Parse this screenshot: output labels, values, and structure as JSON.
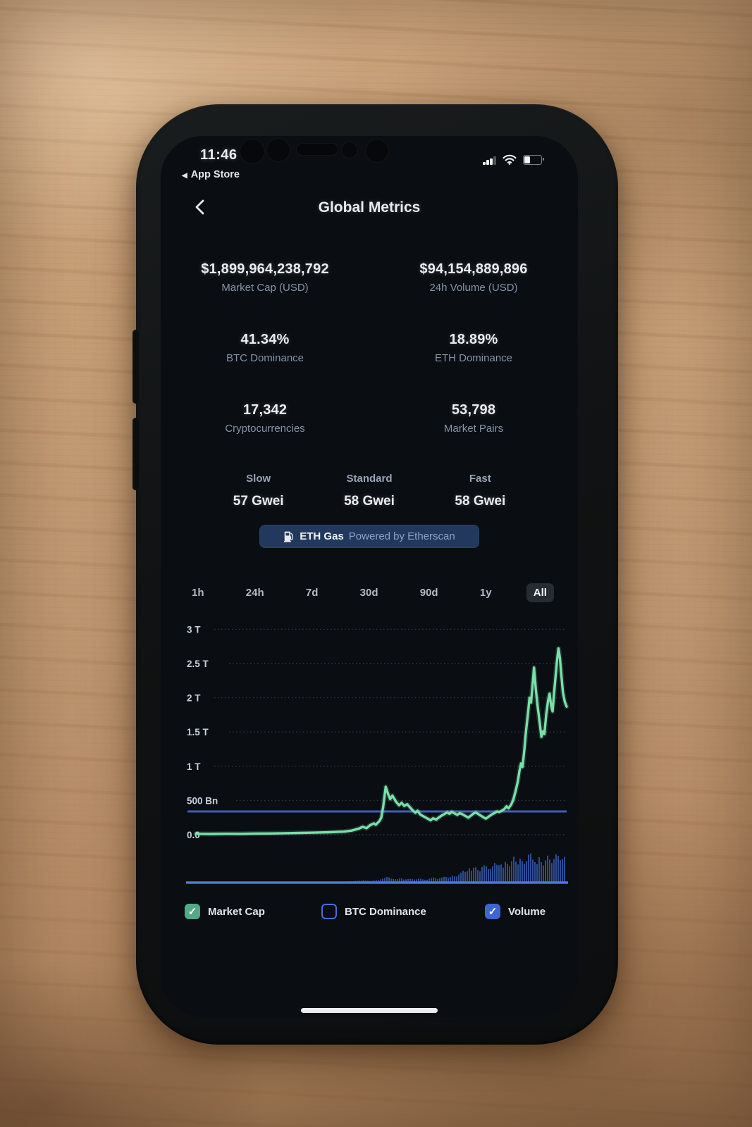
{
  "status_bar": {
    "time": "11:46",
    "back_app": "App Store"
  },
  "header": {
    "title": "Global Metrics"
  },
  "stats": [
    {
      "value": "$1,899,964,238,792",
      "label": "Market Cap (USD)"
    },
    {
      "value": "$94,154,889,896",
      "label": "24h Volume (USD)"
    },
    {
      "value": "41.34%",
      "label": "BTC Dominance"
    },
    {
      "value": "18.89%",
      "label": "ETH Dominance"
    },
    {
      "value": "17,342",
      "label": "Cryptocurrencies"
    },
    {
      "value": "53,798",
      "label": "Market Pairs"
    }
  ],
  "gas": {
    "tiers": [
      {
        "label": "Slow",
        "value": "57 Gwei"
      },
      {
        "label": "Standard",
        "value": "58 Gwei"
      },
      {
        "label": "Fast",
        "value": "58 Gwei"
      }
    ],
    "badge": {
      "title": "ETH Gas",
      "subtitle": "Powered by Etherscan"
    }
  },
  "range_tabs": {
    "options": [
      "1h",
      "24h",
      "7d",
      "30d",
      "90d",
      "1y",
      "All"
    ],
    "active": "All"
  },
  "chart_data": {
    "type": "line",
    "selected_range": "All",
    "y_axis_unit": "USD",
    "y_ticks": [
      {
        "label": "3 T",
        "value_bn": 3000
      },
      {
        "label": "2.5 T",
        "value_bn": 2500
      },
      {
        "label": "2 T",
        "value_bn": 2000
      },
      {
        "label": "1.5 T",
        "value_bn": 1500
      },
      {
        "label": "1 T",
        "value_bn": 1000
      },
      {
        "label": "500 Bn",
        "value_bn": 500
      },
      {
        "label": "0.0",
        "value_bn": 0
      }
    ],
    "ylim_bn": [
      0,
      3200
    ],
    "grid": true,
    "legend_position": "bottom",
    "series": [
      {
        "name": "Market Cap",
        "type": "line",
        "color": "#7adfa9",
        "points": [
          [
            0,
            12
          ],
          [
            0.04,
            10
          ],
          [
            0.08,
            13
          ],
          [
            0.12,
            12
          ],
          [
            0.16,
            16
          ],
          [
            0.2,
            18
          ],
          [
            0.24,
            22
          ],
          [
            0.28,
            26
          ],
          [
            0.32,
            30
          ],
          [
            0.36,
            36
          ],
          [
            0.4,
            45
          ],
          [
            0.42,
            60
          ],
          [
            0.44,
            90
          ],
          [
            0.45,
            115
          ],
          [
            0.46,
            95
          ],
          [
            0.47,
            140
          ],
          [
            0.48,
            165
          ],
          [
            0.485,
            145
          ],
          [
            0.495,
            200
          ],
          [
            0.5,
            250
          ],
          [
            0.505,
            400
          ],
          [
            0.512,
            700
          ],
          [
            0.518,
            600
          ],
          [
            0.524,
            520
          ],
          [
            0.53,
            570
          ],
          [
            0.54,
            480
          ],
          [
            0.548,
            430
          ],
          [
            0.555,
            465
          ],
          [
            0.562,
            420
          ],
          [
            0.57,
            445
          ],
          [
            0.578,
            395
          ],
          [
            0.586,
            350
          ],
          [
            0.592,
            320
          ],
          [
            0.598,
            350
          ],
          [
            0.605,
            295
          ],
          [
            0.615,
            265
          ],
          [
            0.625,
            235
          ],
          [
            0.633,
            210
          ],
          [
            0.64,
            240
          ],
          [
            0.648,
            220
          ],
          [
            0.655,
            250
          ],
          [
            0.663,
            280
          ],
          [
            0.67,
            300
          ],
          [
            0.678,
            325
          ],
          [
            0.684,
            305
          ],
          [
            0.69,
            335
          ],
          [
            0.698,
            310
          ],
          [
            0.705,
            290
          ],
          [
            0.712,
            315
          ],
          [
            0.72,
            295
          ],
          [
            0.728,
            270
          ],
          [
            0.735,
            250
          ],
          [
            0.742,
            280
          ],
          [
            0.748,
            305
          ],
          [
            0.755,
            325
          ],
          [
            0.762,
            300
          ],
          [
            0.768,
            280
          ],
          [
            0.775,
            255
          ],
          [
            0.782,
            235
          ],
          [
            0.79,
            265
          ],
          [
            0.798,
            295
          ],
          [
            0.805,
            315
          ],
          [
            0.812,
            340
          ],
          [
            0.818,
            330
          ],
          [
            0.825,
            350
          ],
          [
            0.832,
            375
          ],
          [
            0.838,
            415
          ],
          [
            0.843,
            385
          ],
          [
            0.85,
            435
          ],
          [
            0.856,
            510
          ],
          [
            0.862,
            630
          ],
          [
            0.868,
            770
          ],
          [
            0.873,
            940
          ],
          [
            0.877,
            1040
          ],
          [
            0.881,
            990
          ],
          [
            0.886,
            1240
          ],
          [
            0.89,
            1490
          ],
          [
            0.895,
            1740
          ],
          [
            0.9,
            2000
          ],
          [
            0.904,
            1930
          ],
          [
            0.908,
            2180
          ],
          [
            0.912,
            2440
          ],
          [
            0.917,
            2120
          ],
          [
            0.922,
            1860
          ],
          [
            0.927,
            1650
          ],
          [
            0.932,
            1430
          ],
          [
            0.936,
            1510
          ],
          [
            0.94,
            1470
          ],
          [
            0.945,
            1760
          ],
          [
            0.95,
            1960
          ],
          [
            0.954,
            2060
          ],
          [
            0.958,
            1890
          ],
          [
            0.962,
            1800
          ],
          [
            0.966,
            2060
          ],
          [
            0.97,
            2300
          ],
          [
            0.974,
            2540
          ],
          [
            0.978,
            2720
          ],
          [
            0.982,
            2580
          ],
          [
            0.986,
            2320
          ],
          [
            0.99,
            2080
          ],
          [
            0.995,
            1940
          ],
          [
            1,
            1870
          ]
        ]
      },
      {
        "name": "BTC Dominance",
        "type": "flat-overlay-line",
        "color": "#4468c9",
        "flat_value_bn": 340
      },
      {
        "name": "Volume",
        "type": "bar",
        "panel": "bottom",
        "color": "#31519c",
        "baseline_color": "#4f76d6",
        "points": [
          [
            0,
            0.01
          ],
          [
            0.1,
            0.012
          ],
          [
            0.2,
            0.015
          ],
          [
            0.3,
            0.02
          ],
          [
            0.38,
            0.025
          ],
          [
            0.42,
            0.04
          ],
          [
            0.45,
            0.07
          ],
          [
            0.47,
            0.05
          ],
          [
            0.49,
            0.08
          ],
          [
            0.505,
            0.13
          ],
          [
            0.515,
            0.18
          ],
          [
            0.525,
            0.12
          ],
          [
            0.54,
            0.1
          ],
          [
            0.55,
            0.14
          ],
          [
            0.56,
            0.09
          ],
          [
            0.575,
            0.12
          ],
          [
            0.59,
            0.09
          ],
          [
            0.6,
            0.13
          ],
          [
            0.61,
            0.1
          ],
          [
            0.62,
            0.08
          ],
          [
            0.63,
            0.13
          ],
          [
            0.64,
            0.16
          ],
          [
            0.65,
            0.11
          ],
          [
            0.66,
            0.15
          ],
          [
            0.67,
            0.19
          ],
          [
            0.68,
            0.14
          ],
          [
            0.69,
            0.21
          ],
          [
            0.7,
            0.17
          ],
          [
            0.71,
            0.28
          ],
          [
            0.72,
            0.38
          ],
          [
            0.727,
            0.3
          ],
          [
            0.735,
            0.45
          ],
          [
            0.742,
            0.36
          ],
          [
            0.75,
            0.52
          ],
          [
            0.757,
            0.4
          ],
          [
            0.764,
            0.34
          ],
          [
            0.77,
            0.48
          ],
          [
            0.778,
            0.56
          ],
          [
            0.785,
            0.44
          ],
          [
            0.79,
            0.38
          ],
          [
            0.8,
            0.52
          ],
          [
            0.806,
            0.64
          ],
          [
            0.812,
            0.5
          ],
          [
            0.82,
            0.58
          ],
          [
            0.827,
            0.46
          ],
          [
            0.834,
            0.68
          ],
          [
            0.84,
            0.54
          ],
          [
            0.847,
            0.48
          ],
          [
            0.853,
            0.88
          ],
          [
            0.86,
            0.66
          ],
          [
            0.867,
            0.56
          ],
          [
            0.874,
            0.78
          ],
          [
            0.88,
            0.62
          ],
          [
            0.887,
            0.54
          ],
          [
            0.893,
            0.82
          ],
          [
            0.9,
            0.94
          ],
          [
            0.906,
            0.72
          ],
          [
            0.912,
            0.64
          ],
          [
            0.918,
            0.56
          ],
          [
            0.924,
            0.78
          ],
          [
            0.93,
            0.62
          ],
          [
            0.936,
            0.52
          ],
          [
            0.942,
            0.72
          ],
          [
            0.948,
            0.86
          ],
          [
            0.954,
            0.66
          ],
          [
            0.96,
            0.58
          ],
          [
            0.966,
            0.8
          ],
          [
            0.972,
            0.92
          ],
          [
            0.978,
            0.74
          ],
          [
            0.984,
            0.64
          ],
          [
            0.99,
            0.82
          ],
          [
            1,
            0.72
          ]
        ]
      }
    ]
  },
  "legend": [
    {
      "label": "Market Cap",
      "checked": true,
      "box_fill": "#53a987",
      "box_border": "#53a987"
    },
    {
      "label": "BTC Dominance",
      "checked": false,
      "box_fill": "transparent",
      "box_border": "#4a6fd4"
    },
    {
      "label": "Volume",
      "checked": true,
      "box_fill": "#3f66cc",
      "box_border": "#3f66cc"
    }
  ],
  "colors": {
    "accent_green": "#7adfa9",
    "accent_blue": "#4a6fd4",
    "badge_bg": "#22385c",
    "screen_bg": "#0a0d12",
    "muted_text": "#8494a9",
    "gridline": "rgba(125,155,205,0.30)"
  }
}
